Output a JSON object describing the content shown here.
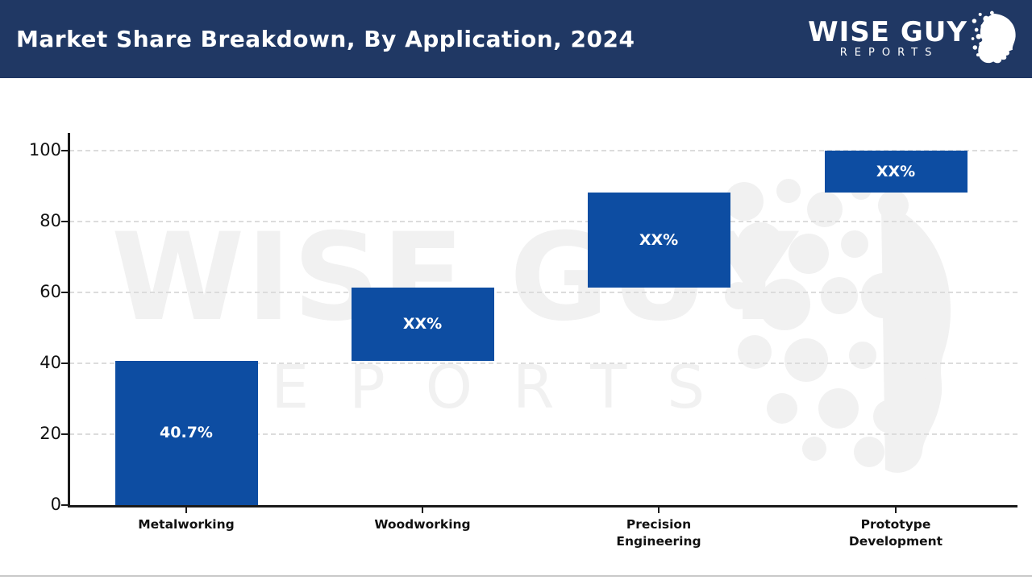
{
  "header": {
    "title": "Market Share Breakdown, By Application, 2024",
    "logo_line1": "WISE GUY",
    "logo_line2": "REPORTS"
  },
  "watermark": {
    "line1": "WISE GUY",
    "line2": "REPORTS"
  },
  "colors": {
    "header_bg": "#203864",
    "bar": "#0d4da2",
    "grid": "#dcdcdc",
    "axis": "#1a1a1a",
    "title_text": "#ffffff",
    "bar_label_text": "#ffffff",
    "watermark": "#f1f1f1"
  },
  "chart_data": {
    "type": "bar",
    "subtype": "waterfall",
    "title": "Market Share Breakdown, By Application, 2024",
    "categories": [
      "Metalworking",
      "Woodworking",
      "Precision Engineering",
      "Prototype Development"
    ],
    "category_lines": [
      [
        "Metalworking"
      ],
      [
        "Woodworking"
      ],
      [
        "Precision",
        "Engineering"
      ],
      [
        "Prototype",
        "Development"
      ]
    ],
    "segments": [
      {
        "category": "Metalworking",
        "start": 0,
        "end": 40.7,
        "increment": 40.7,
        "label": "40.7%"
      },
      {
        "category": "Woodworking",
        "start": 40.7,
        "end": 61.4,
        "increment": 20.7,
        "label": "XX%"
      },
      {
        "category": "Precision Engineering",
        "start": 61.4,
        "end": 88.2,
        "increment": 26.8,
        "label": "XX%"
      },
      {
        "category": "Prototype Development",
        "start": 88.2,
        "end": 100,
        "increment": 11.8,
        "label": "XX%"
      }
    ],
    "yticks": [
      0,
      20,
      40,
      60,
      80,
      100
    ],
    "ylim": [
      0,
      105
    ],
    "xlabel": "",
    "ylabel": "",
    "grid": "horizontal-dashed",
    "legend": "none"
  }
}
